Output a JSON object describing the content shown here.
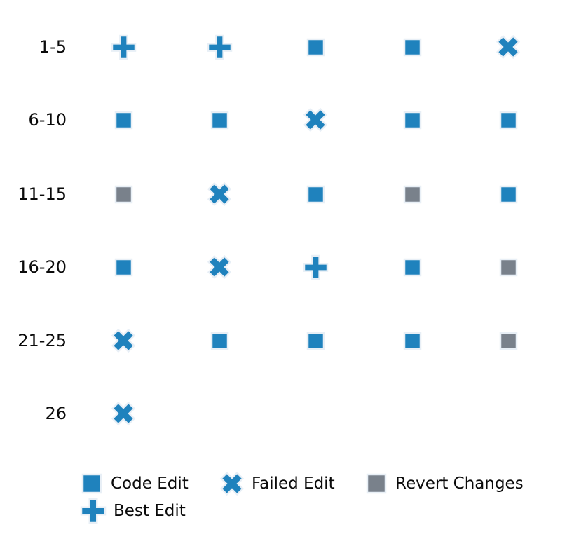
{
  "chart_data": {
    "type": "scatter",
    "title": "",
    "xlabel": "",
    "ylabel": "",
    "row_labels": [
      "1-5",
      "6-10",
      "11-15",
      "16-20",
      "21-25",
      "26"
    ],
    "num_columns": 5,
    "marker_types": {
      "code": {
        "label": "Code Edit",
        "shape": "square",
        "color": "#1f82bd"
      },
      "failed": {
        "label": "Failed Edit",
        "shape": "x",
        "color": "#1f82bd"
      },
      "revert": {
        "label": "Revert Changes",
        "shape": "square",
        "color": "#79818b"
      },
      "best": {
        "label": "Best Edit",
        "shape": "plus",
        "color": "#1f82bd"
      }
    },
    "grid": [
      {
        "row": "1-5",
        "cells": [
          "best",
          "best",
          "code",
          "code",
          "failed"
        ]
      },
      {
        "row": "6-10",
        "cells": [
          "code",
          "code",
          "failed",
          "code",
          "code"
        ]
      },
      {
        "row": "11-15",
        "cells": [
          "revert",
          "failed",
          "code",
          "revert",
          "code"
        ]
      },
      {
        "row": "16-20",
        "cells": [
          "code",
          "failed",
          "plusbest",
          "code",
          "revert"
        ]
      },
      {
        "row": "21-25",
        "cells": [
          "failed",
          "code",
          "code",
          "code",
          "revert"
        ]
      },
      {
        "row": "26",
        "cells": [
          "failed",
          null,
          null,
          null,
          null
        ]
      }
    ],
    "legend": {
      "position": "bottom",
      "entries": [
        {
          "key": "code",
          "label": "Code Edit"
        },
        {
          "key": "failed",
          "label": "Failed Edit"
        },
        {
          "key": "revert",
          "label": "Revert Changes"
        },
        {
          "key": "best",
          "label": "Best Edit"
        }
      ]
    },
    "background": "#ffffff",
    "halo_color": "#e8eff6",
    "text_color": "#0a0a0a"
  }
}
